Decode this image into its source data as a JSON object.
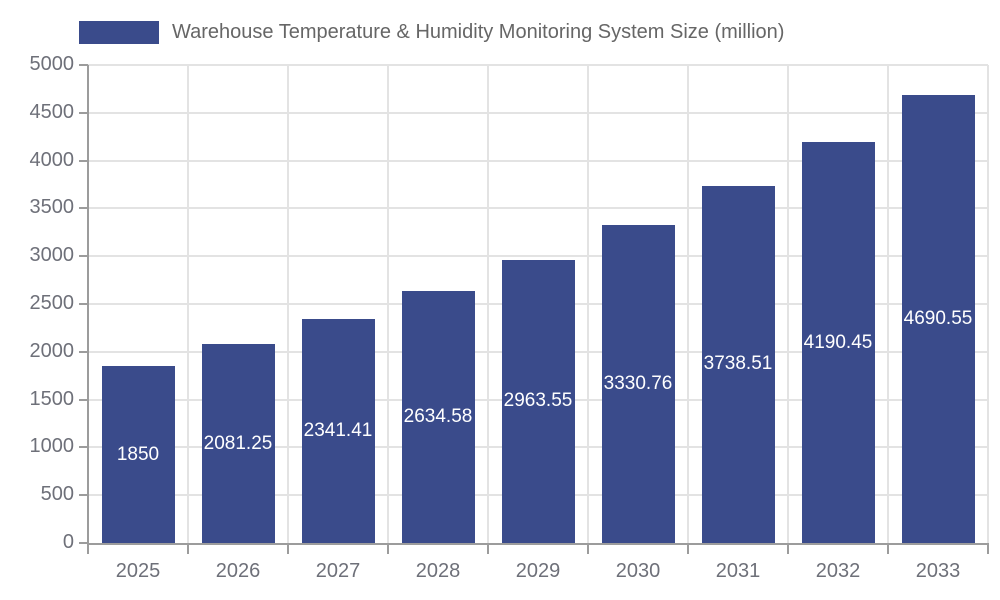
{
  "legend": {
    "label": "Warehouse Temperature & Humidity Monitoring System Size (million)"
  },
  "colors": {
    "bar": "#3A4B8B",
    "grid": "#E3E3E3",
    "axis": "#9C9C9C",
    "tick_label": "#6E7079",
    "legend_text": "#666666",
    "bar_label": "#FFFFFF",
    "background": "#FFFFFF"
  },
  "chart_data": {
    "type": "bar",
    "title": "Warehouse Temperature & Humidity Monitoring System Size (million)",
    "categories": [
      "2025",
      "2026",
      "2027",
      "2028",
      "2029",
      "2030",
      "2031",
      "2032",
      "2033"
    ],
    "values": [
      1850,
      2081.25,
      2341.41,
      2634.58,
      2963.55,
      3330.76,
      3738.51,
      4190.45,
      4690.55
    ],
    "xlabel": "",
    "ylabel": "",
    "ylim": [
      0,
      5000
    ],
    "ytick_step": 500,
    "grid": true,
    "legend_position": "top-left",
    "value_labels_position": "inside-center"
  }
}
